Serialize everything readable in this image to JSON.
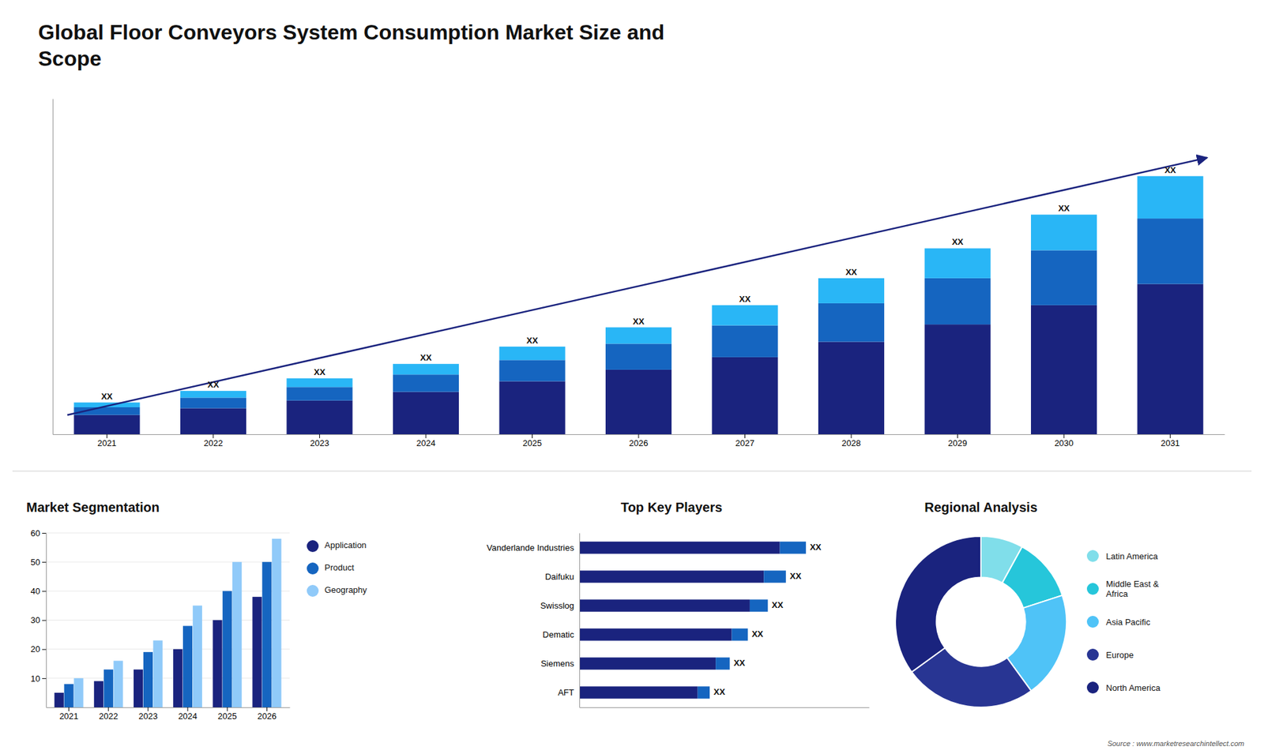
{
  "chart_data": [
    {
      "type": "bar",
      "title": "Global Floor Conveyors System Consumption Market Size and\nScope",
      "stacked": true,
      "categories": [
        "2021",
        "2022",
        "2023",
        "2024",
        "2025",
        "2026",
        "2027",
        "2028",
        "2029",
        "2030",
        "2031"
      ],
      "series": [
        {
          "color": "#1a237e",
          "values": [
            1.0,
            1.35,
            1.75,
            2.2,
            2.75,
            3.35,
            4.0,
            4.8,
            5.7,
            6.7,
            7.8
          ]
        },
        {
          "color": "#1565c0",
          "values": [
            0.4,
            0.55,
            0.7,
            0.9,
            1.1,
            1.35,
            1.65,
            2.0,
            2.4,
            2.85,
            3.4
          ]
        },
        {
          "color": "#29b6f6",
          "values": [
            0.25,
            0.35,
            0.45,
            0.55,
            0.7,
            0.85,
            1.05,
            1.3,
            1.55,
            1.85,
            2.2
          ],
          "value_labels": [
            "XX",
            "XX",
            "XX",
            "XX",
            "XX",
            "XX",
            "XX",
            "XX",
            "XX",
            "XX",
            "XX"
          ]
        }
      ],
      "ylim": [
        0,
        17.42
      ],
      "tick_labels": "x",
      "grid": false
    },
    {
      "type": "bar",
      "title": "Market Segmentation",
      "categories": [
        "2021",
        "2022",
        "2023",
        "2024",
        "2025",
        "2026"
      ],
      "series": [
        {
          "name": "Application",
          "color": "#1a237e",
          "values": [
            5,
            9,
            13,
            20,
            30,
            38
          ]
        },
        {
          "name": "Product",
          "color": "#1565c0",
          "values": [
            8,
            13,
            19,
            28,
            40,
            50
          ]
        },
        {
          "name": "Geography",
          "color": "#90caf9",
          "values": [
            10,
            16,
            23,
            35,
            50,
            58
          ]
        }
      ],
      "ylim": [
        0,
        60
      ],
      "yticks": [
        10,
        20,
        30,
        40,
        50,
        60
      ],
      "grid": true,
      "legend": "right"
    },
    {
      "type": "bar",
      "title": "Top Key Players",
      "orientation": "horizontal",
      "stacked": true,
      "categories": [
        "Vanderlande Industries",
        "Daifuku",
        "Swisslog",
        "Dematic",
        "Siemens",
        "AFT"
      ],
      "series": [
        {
          "color": "#1a237e",
          "values": [
            9.0,
            8.28,
            7.65,
            6.84,
            6.12,
            5.31
          ]
        },
        {
          "color": "#1565c0",
          "values": [
            1.17,
            0.99,
            0.81,
            0.72,
            0.63,
            0.54
          ],
          "value_labels": [
            "XX",
            "XX",
            "XX",
            "XX",
            "XX",
            "XX"
          ]
        }
      ],
      "xlim": [
        0,
        13
      ],
      "tick_labels": "y",
      "grid": false
    },
    {
      "type": "pie",
      "title": "Regional Analysis",
      "categories": [
        "Latin America",
        "Middle East &\nAfrica",
        "Asia Pacific",
        "Europe",
        "North America"
      ],
      "values": [
        8,
        12,
        20,
        25,
        35
      ],
      "colors": [
        "#80deea",
        "#26c6da",
        "#4fc3f7",
        "#283593",
        "#1a237e"
      ],
      "legend": "right",
      "annotations": [
        "Source : www.marketresearchintellect.com"
      ]
    }
  ]
}
